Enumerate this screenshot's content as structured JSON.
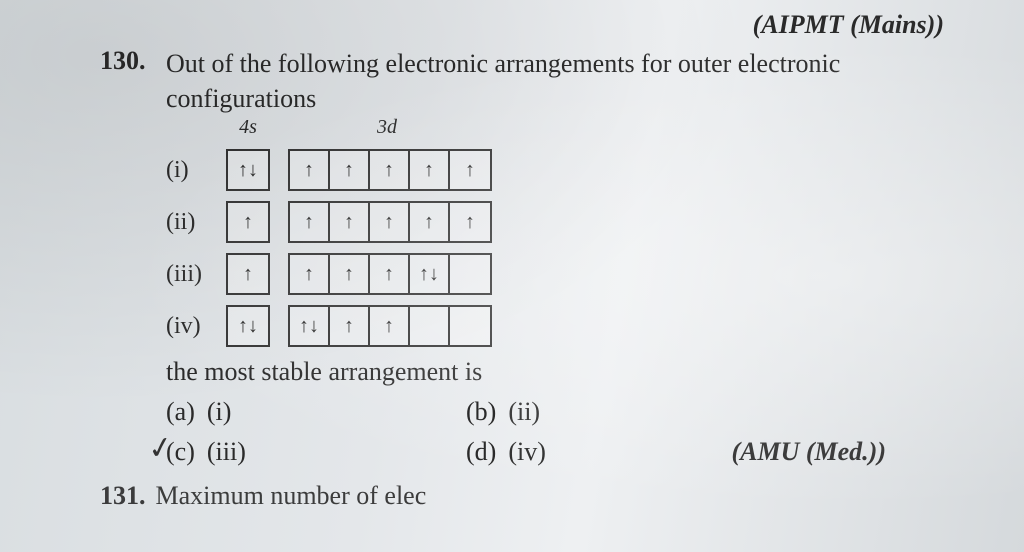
{
  "source_top": "(AIPMT (Mains))",
  "question_number": "130.",
  "question_text": "Out of the following electronic arrangements for outer electronic configurations",
  "orbital_headers": {
    "s": "4s",
    "d": "3d"
  },
  "options": [
    {
      "roman": "(i)",
      "s": [
        "↑↓"
      ],
      "d": [
        "↑",
        "↑",
        "↑",
        "↑",
        "↑"
      ]
    },
    {
      "roman": "(ii)",
      "s": [
        "↑"
      ],
      "d": [
        "↑",
        "↑",
        "↑",
        "↑",
        "↑"
      ]
    },
    {
      "roman": "(iii)",
      "s": [
        "↑"
      ],
      "d": [
        "↑",
        "↑",
        "↑",
        "↑↓",
        ""
      ]
    },
    {
      "roman": "(iv)",
      "s": [
        "↑↓"
      ],
      "d": [
        "↑↓",
        "↑",
        "↑",
        "",
        ""
      ]
    }
  ],
  "stable_line": "the most stable arrangement is",
  "answers": [
    {
      "letter": "(a)",
      "val": "(i)",
      "ticked": false
    },
    {
      "letter": "(b)",
      "val": "(ii)",
      "ticked": false
    },
    {
      "letter": "(c)",
      "val": "(iii)",
      "ticked": true
    },
    {
      "letter": "(d)",
      "val": "(iv)",
      "ticked": false
    }
  ],
  "source_bottom": "(AMU (Med.))",
  "next_question_number": "131.",
  "next_question_partial": "Maximum number of elec"
}
